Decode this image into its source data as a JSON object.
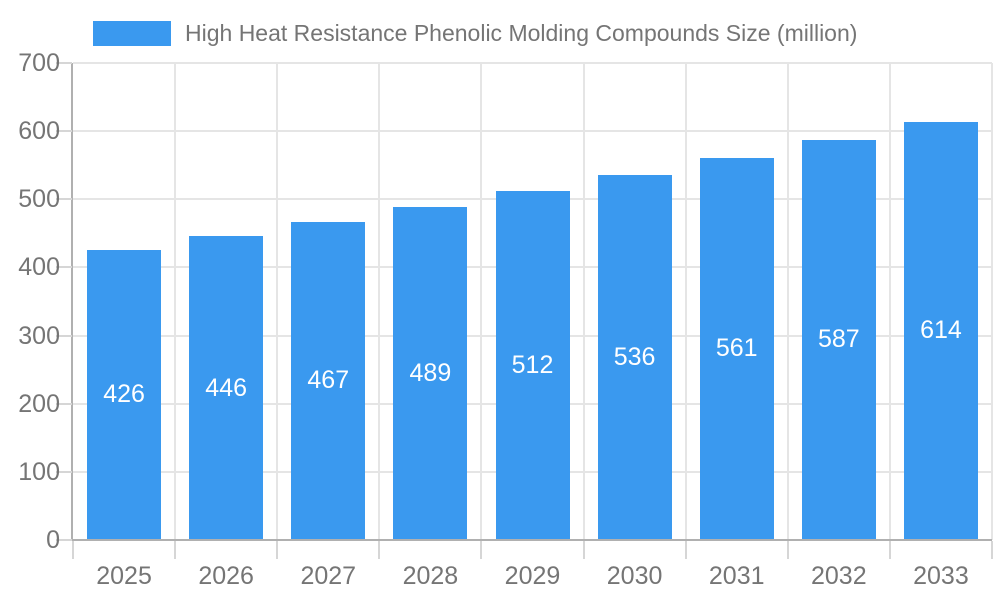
{
  "chart_data": {
    "type": "bar",
    "title": "High Heat Resistance Phenolic Molding Compounds Size (million)",
    "categories": [
      "2025",
      "2026",
      "2027",
      "2028",
      "2029",
      "2030",
      "2031",
      "2032",
      "2033"
    ],
    "values": [
      426,
      446,
      467,
      489,
      512,
      536,
      561,
      587,
      614
    ],
    "xlabel": "",
    "ylabel": "",
    "ylim": [
      0,
      700
    ],
    "yticks": [
      0,
      100,
      200,
      300,
      400,
      500,
      600,
      700
    ],
    "grid": true,
    "legend_position": "top",
    "bar_color": "#3A99EF",
    "value_label_color": "#FFFFFF",
    "axis_text_color": "#757575"
  }
}
